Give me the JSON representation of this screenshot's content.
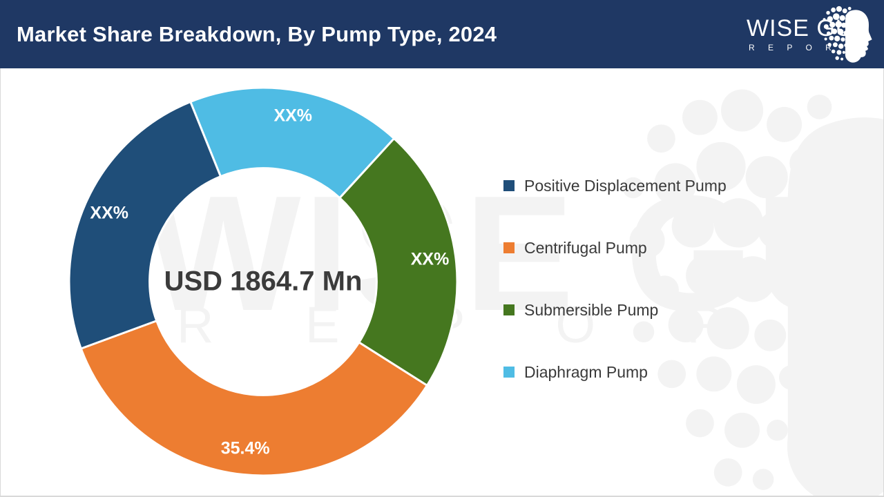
{
  "header": {
    "title": "Market Share Breakdown, By Pump Type, 2024",
    "logo": {
      "line1": "WISE GUY",
      "line2": "R E P O R T S"
    }
  },
  "chart_data": {
    "type": "pie",
    "subtype": "donut",
    "title": "Market Share Breakdown, By Pump Type, 2024",
    "center_label": "USD 1864.7 Mn",
    "start_angle_deg": -22,
    "inner_radius_ratio": 0.585,
    "legend_position": "right",
    "segments": [
      {
        "label": "Diaphragm Pump",
        "value_display": "XX%",
        "pct": 17.9,
        "color": "#4FBCE4"
      },
      {
        "label": "Submersible Pump",
        "value_display": "XX%",
        "pct": 22.2,
        "color": "#45771F"
      },
      {
        "label": "Centrifugal Pump",
        "value_display": "35.4%",
        "pct": 35.4,
        "color": "#ED7D31"
      },
      {
        "label": "Positive Displacement Pump",
        "value_display": "XX%",
        "pct": 24.5,
        "color": "#1F4E79"
      }
    ],
    "legend_order": [
      3,
      2,
      1,
      0
    ]
  },
  "watermark": {
    "line1": "WISE GUY",
    "line2": "R E P O R T S"
  },
  "colors": {
    "header_bg": "#1F3864",
    "border": "#D9D9D9",
    "watermark": "#F3F3F3",
    "center_text": "#3B3B3B",
    "legend_text": "#3A3A3A",
    "segment_label_text": "#FFFFFF"
  }
}
